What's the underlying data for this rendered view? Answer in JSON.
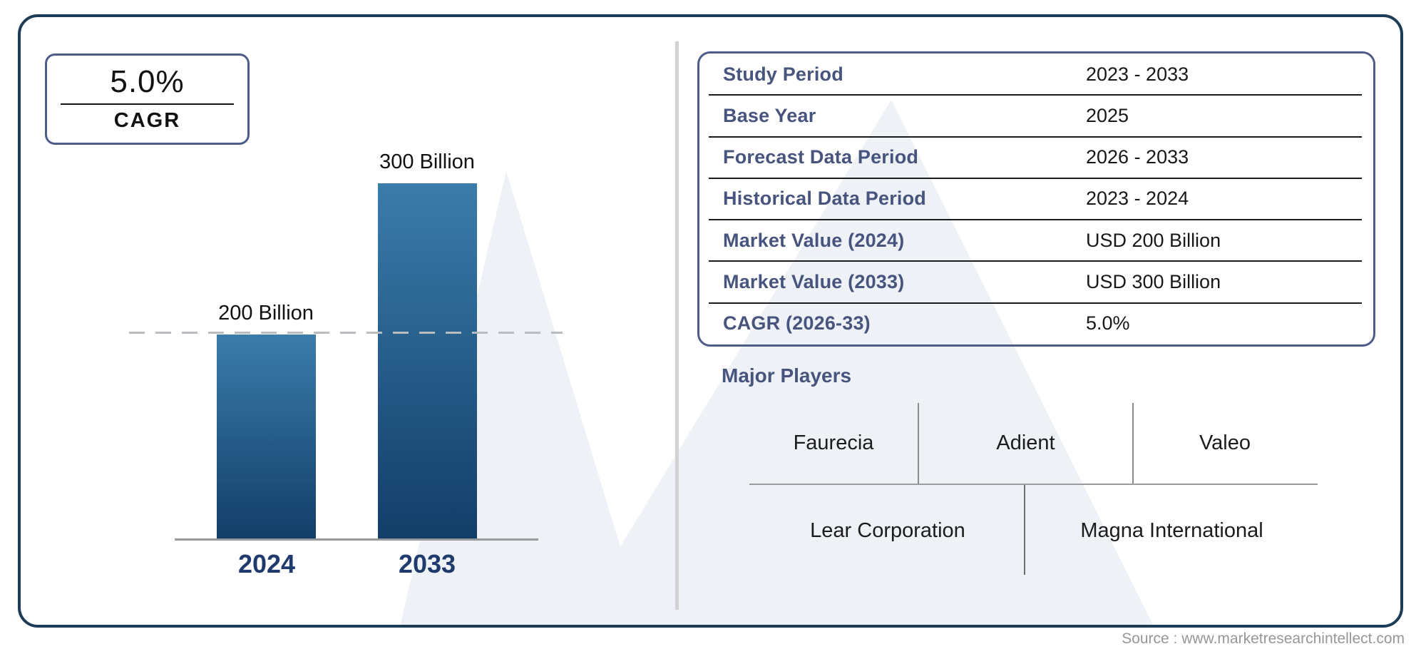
{
  "cagr_badge": {
    "value": "5.0%",
    "label": "CAGR"
  },
  "chart_data": {
    "type": "bar",
    "categories": [
      "2024",
      "2033"
    ],
    "values": [
      200,
      300
    ],
    "unit": "USD Billion",
    "bar_labels": [
      "200 Billion",
      "300 Billion"
    ],
    "reference_line": {
      "value": 200,
      "style": "dashed"
    },
    "gridlines": false,
    "legend": "none",
    "bar_color_top": "#3b7cab",
    "bar_color_bottom": "#123e68"
  },
  "info_table": {
    "rows": [
      {
        "label": "Study Period",
        "value": "2023 - 2033"
      },
      {
        "label": "Base Year",
        "value": "2025"
      },
      {
        "label": "Forecast Data Period",
        "value": "2026 - 2033"
      },
      {
        "label": "Historical Data Period",
        "value": "2023 - 2024"
      },
      {
        "label": "Market Value (2024)",
        "value": "USD 200 Billion"
      },
      {
        "label": "Market Value (2033)",
        "value": "USD 300 Billion"
      },
      {
        "label": "CAGR (2026-33)",
        "value": "5.0%"
      }
    ]
  },
  "major_players": {
    "title": "Major Players",
    "top_row": [
      "Faurecia",
      "Adient",
      "Valeo"
    ],
    "bottom_row": [
      "Lear Corporation",
      "Magna International"
    ]
  },
  "footer": {
    "source_text": "Source : www.marketresearchintellect.com"
  },
  "colors": {
    "frame_border": "#1d3c55",
    "panel_border": "#4d5c88",
    "accent_label": "#47547e",
    "year_label": "#1f3b6d",
    "watermark": "#eef1f6",
    "divider_gray": "#d2d2d2"
  }
}
